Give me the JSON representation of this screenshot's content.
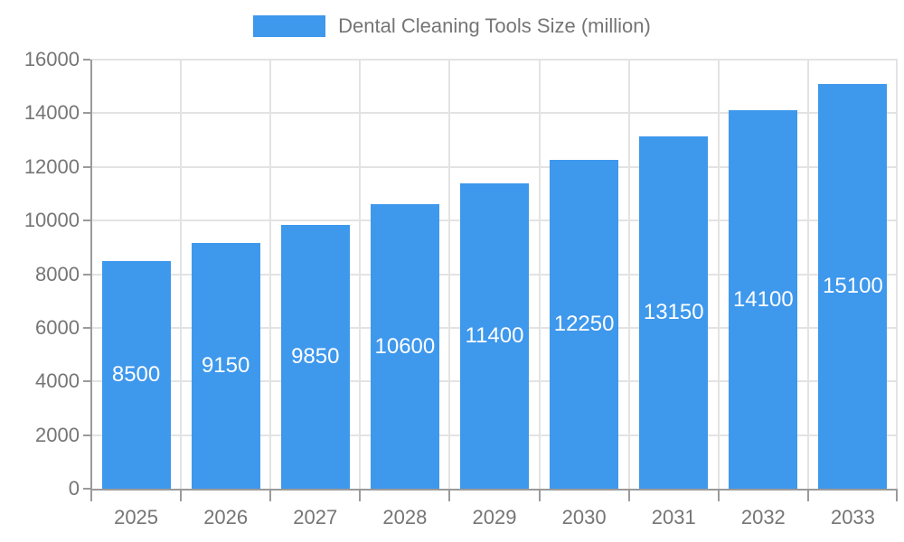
{
  "chart_data": {
    "type": "bar",
    "title": "Dental Cleaning Tools Size (million)",
    "categories": [
      "2025",
      "2026",
      "2027",
      "2028",
      "2029",
      "2030",
      "2031",
      "2032",
      "2033"
    ],
    "values": [
      8500,
      9150,
      9850,
      10600,
      11400,
      12250,
      13150,
      14100,
      15100
    ],
    "xlabel": "",
    "ylabel": "",
    "ylim": [
      0,
      16000
    ],
    "yticks": [
      0,
      2000,
      4000,
      6000,
      8000,
      10000,
      12000,
      14000,
      16000
    ],
    "grid": true,
    "legend_position": "top-center",
    "bar_labels_inside": true,
    "colors": {
      "bar": "#3E98EC",
      "bar_label": "#FFFFFF",
      "axis_text": "#757575",
      "gridline": "#E3E3E3",
      "axis_line": "#9A9A9A",
      "background": "#FFFFFF"
    }
  }
}
